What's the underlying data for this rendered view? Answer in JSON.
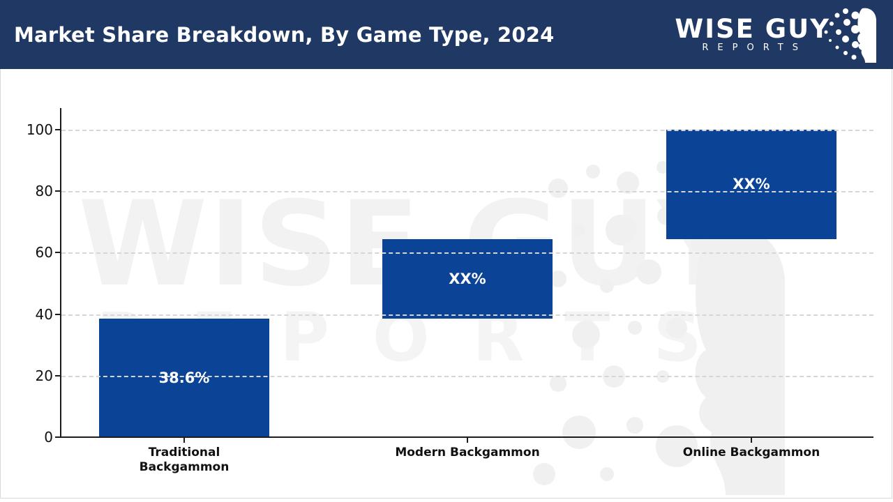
{
  "header": {
    "title": "Market Share Breakdown, By Game Type, 2024",
    "bg_color": "#1f3864",
    "logo": {
      "line1": "WISE GUY",
      "line2": "REPORTS"
    }
  },
  "watermark": {
    "line1": "WISE GUY",
    "line2": "REPORTS"
  },
  "chart_data": {
    "type": "bar",
    "subtype": "floating-waterfall-columns",
    "title": "Market Share Breakdown, By Game Type, 2024",
    "categories": [
      "Traditional Backgammon",
      "Modern Backgammon",
      "Online Backgammon"
    ],
    "categories_display": [
      "Traditional\nBackgammon",
      "Modern Backgammon",
      "Online Backgammon"
    ],
    "series": [
      {
        "name": "Market Share (%)",
        "ranges": [
          [
            0,
            38.6
          ],
          [
            38.6,
            64.4
          ],
          [
            64.4,
            100
          ]
        ]
      }
    ],
    "bar_labels": [
      "38.6%",
      "XX%",
      "XX%"
    ],
    "y_ticks": [
      0,
      20,
      40,
      60,
      80,
      100
    ],
    "ylim": [
      0,
      107
    ],
    "xlabel": "",
    "ylabel": "",
    "grid": "horizontal-dashed-over-bars",
    "legend": "none",
    "colors": {
      "bar": "#0b4397",
      "bar_label": "#ffffff",
      "axis": "#1c1c1c",
      "gridline": "#d6d6d6",
      "header_bg": "#1f3864",
      "watermark": "#f2f2f2",
      "card_border": "#d9d9d9"
    }
  }
}
